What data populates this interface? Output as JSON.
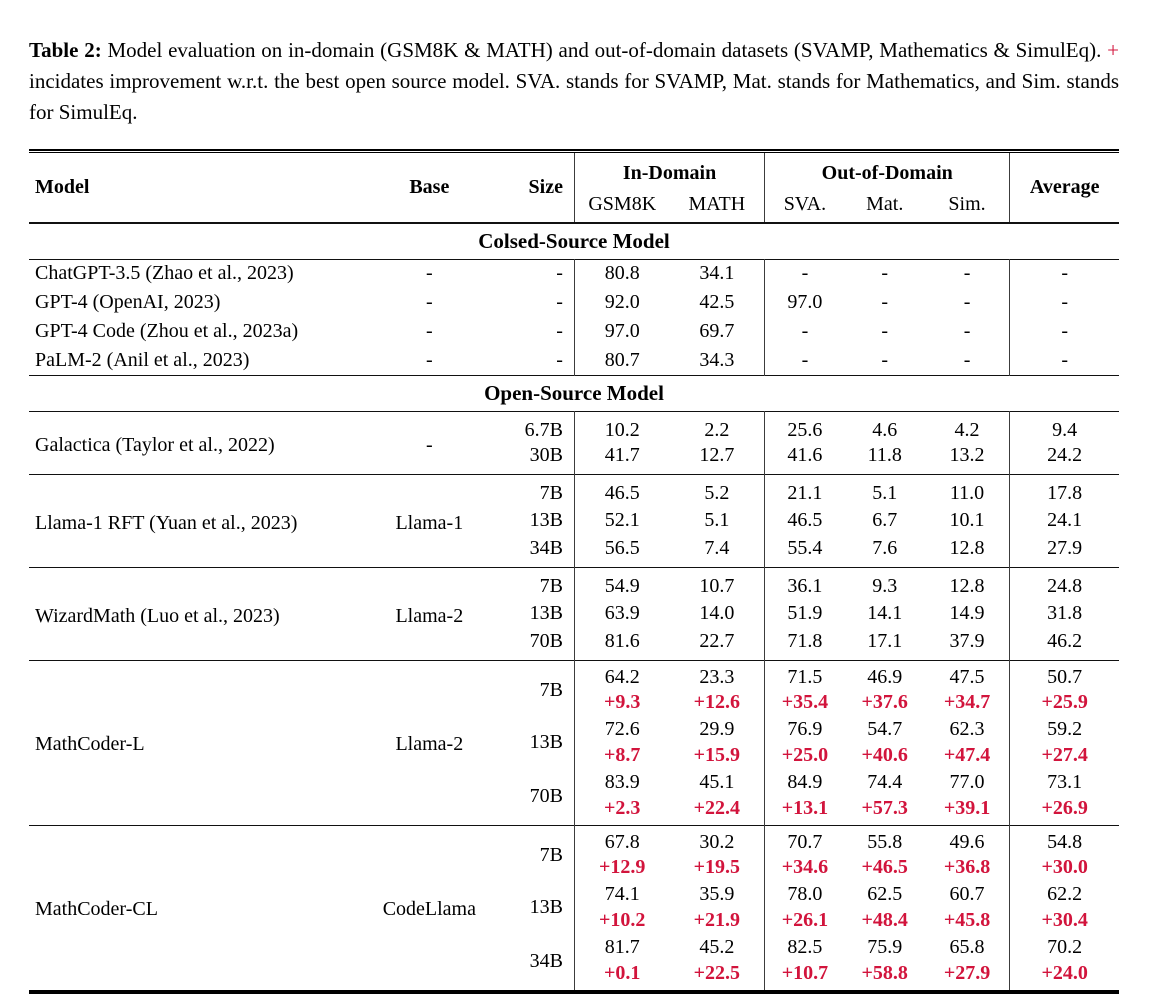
{
  "accent_red": "#d2143c",
  "caption": {
    "label": "Table 2:",
    "before_plus": " Model evaluation on in-domain (GSM8K & MATH) and out-of-domain datasets (SVAMP, Mathematics & SimulEq). ",
    "plus": "+",
    "after_plus": " incidates improvement w.r.t. the best open source model. SVA. stands for SVAMP, Mat. stands for Mathematics, and Sim. stands for SimulEq."
  },
  "header": {
    "model": "Model",
    "base": "Base",
    "size": "Size",
    "in_domain": "In-Domain",
    "out_of_domain": "Out-of-Domain",
    "average": "Average",
    "gsm8k": "GSM8K",
    "math": "MATH",
    "sva": "SVA.",
    "mat": "Mat.",
    "sim": "Sim."
  },
  "closed": {
    "title": "Colsed-Source Model",
    "rows": [
      {
        "model": "ChatGPT-3.5 (Zhao et al., 2023)",
        "base": "-",
        "size": "-",
        "values": [
          "80.8",
          "34.1",
          "-",
          "-",
          "-",
          "-"
        ]
      },
      {
        "model": "GPT-4 (OpenAI, 2023)",
        "base": "-",
        "size": "-",
        "values": [
          "92.0",
          "42.5",
          "97.0",
          "-",
          "-",
          "-"
        ]
      },
      {
        "model": "GPT-4 Code (Zhou et al., 2023a)",
        "base": "-",
        "size": "-",
        "values": [
          "97.0",
          "69.7",
          "-",
          "-",
          "-",
          "-"
        ]
      },
      {
        "model": "PaLM-2 (Anil et al., 2023)",
        "base": "-",
        "size": "-",
        "values": [
          "80.7",
          "34.3",
          "-",
          "-",
          "-",
          "-"
        ]
      }
    ]
  },
  "open": {
    "title": "Open-Source Model",
    "groups": [
      {
        "model": "Galactica (Taylor et al., 2022)",
        "base": "-",
        "rows": [
          {
            "size": "6.7B",
            "values": [
              "10.2",
              "2.2",
              "25.6",
              "4.6",
              "4.2",
              "9.4"
            ]
          },
          {
            "size": "30B",
            "values": [
              "41.7",
              "12.7",
              "41.6",
              "11.8",
              "13.2",
              "24.2"
            ]
          }
        ]
      },
      {
        "model": "Llama-1 RFT (Yuan et al., 2023)",
        "base": "Llama-1",
        "rows": [
          {
            "size": "7B",
            "values": [
              "46.5",
              "5.2",
              "21.1",
              "5.1",
              "11.0",
              "17.8"
            ]
          },
          {
            "size": "13B",
            "values": [
              "52.1",
              "5.1",
              "46.5",
              "6.7",
              "10.1",
              "24.1"
            ]
          },
          {
            "size": "34B",
            "values": [
              "56.5",
              "7.4",
              "55.4",
              "7.6",
              "12.8",
              "27.9"
            ]
          }
        ]
      },
      {
        "model": "WizardMath (Luo et al., 2023)",
        "base": "Llama-2",
        "rows": [
          {
            "size": "7B",
            "values": [
              "54.9",
              "10.7",
              "36.1",
              "9.3",
              "12.8",
              "24.8"
            ]
          },
          {
            "size": "13B",
            "values": [
              "63.9",
              "14.0",
              "51.9",
              "14.1",
              "14.9",
              "31.8"
            ]
          },
          {
            "size": "70B",
            "values": [
              "81.6",
              "22.7",
              "71.8",
              "17.1",
              "37.9",
              "46.2"
            ]
          }
        ]
      },
      {
        "model": "MathCoder-L",
        "base": "Llama-2",
        "rows": [
          {
            "size": "7B",
            "values": [
              "64.2",
              "23.3",
              "71.5",
              "46.9",
              "47.5",
              "50.7"
            ],
            "delta": [
              "+9.3",
              "+12.6",
              "+35.4",
              "+37.6",
              "+34.7",
              "+25.9"
            ]
          },
          {
            "size": "13B",
            "values": [
              "72.6",
              "29.9",
              "76.9",
              "54.7",
              "62.3",
              "59.2"
            ],
            "delta": [
              "+8.7",
              "+15.9",
              "+25.0",
              "+40.6",
              "+47.4",
              "+27.4"
            ]
          },
          {
            "size": "70B",
            "values": [
              "83.9",
              "45.1",
              "84.9",
              "74.4",
              "77.0",
              "73.1"
            ],
            "delta": [
              "+2.3",
              "+22.4",
              "+13.1",
              "+57.3",
              "+39.1",
              "+26.9"
            ]
          }
        ]
      },
      {
        "model": "MathCoder-CL",
        "base": "CodeLlama",
        "rows": [
          {
            "size": "7B",
            "values": [
              "67.8",
              "30.2",
              "70.7",
              "55.8",
              "49.6",
              "54.8"
            ],
            "delta": [
              "+12.9",
              "+19.5",
              "+34.6",
              "+46.5",
              "+36.8",
              "+30.0"
            ]
          },
          {
            "size": "13B",
            "values": [
              "74.1",
              "35.9",
              "78.0",
              "62.5",
              "60.7",
              "62.2"
            ],
            "delta": [
              "+10.2",
              "+21.9",
              "+26.1",
              "+48.4",
              "+45.8",
              "+30.4"
            ]
          },
          {
            "size": "34B",
            "values": [
              "81.7",
              "45.2",
              "82.5",
              "75.9",
              "65.8",
              "70.2"
            ],
            "delta": [
              "+0.1",
              "+22.5",
              "+10.7",
              "+58.8",
              "+27.9",
              "+24.0"
            ]
          }
        ]
      }
    ]
  }
}
